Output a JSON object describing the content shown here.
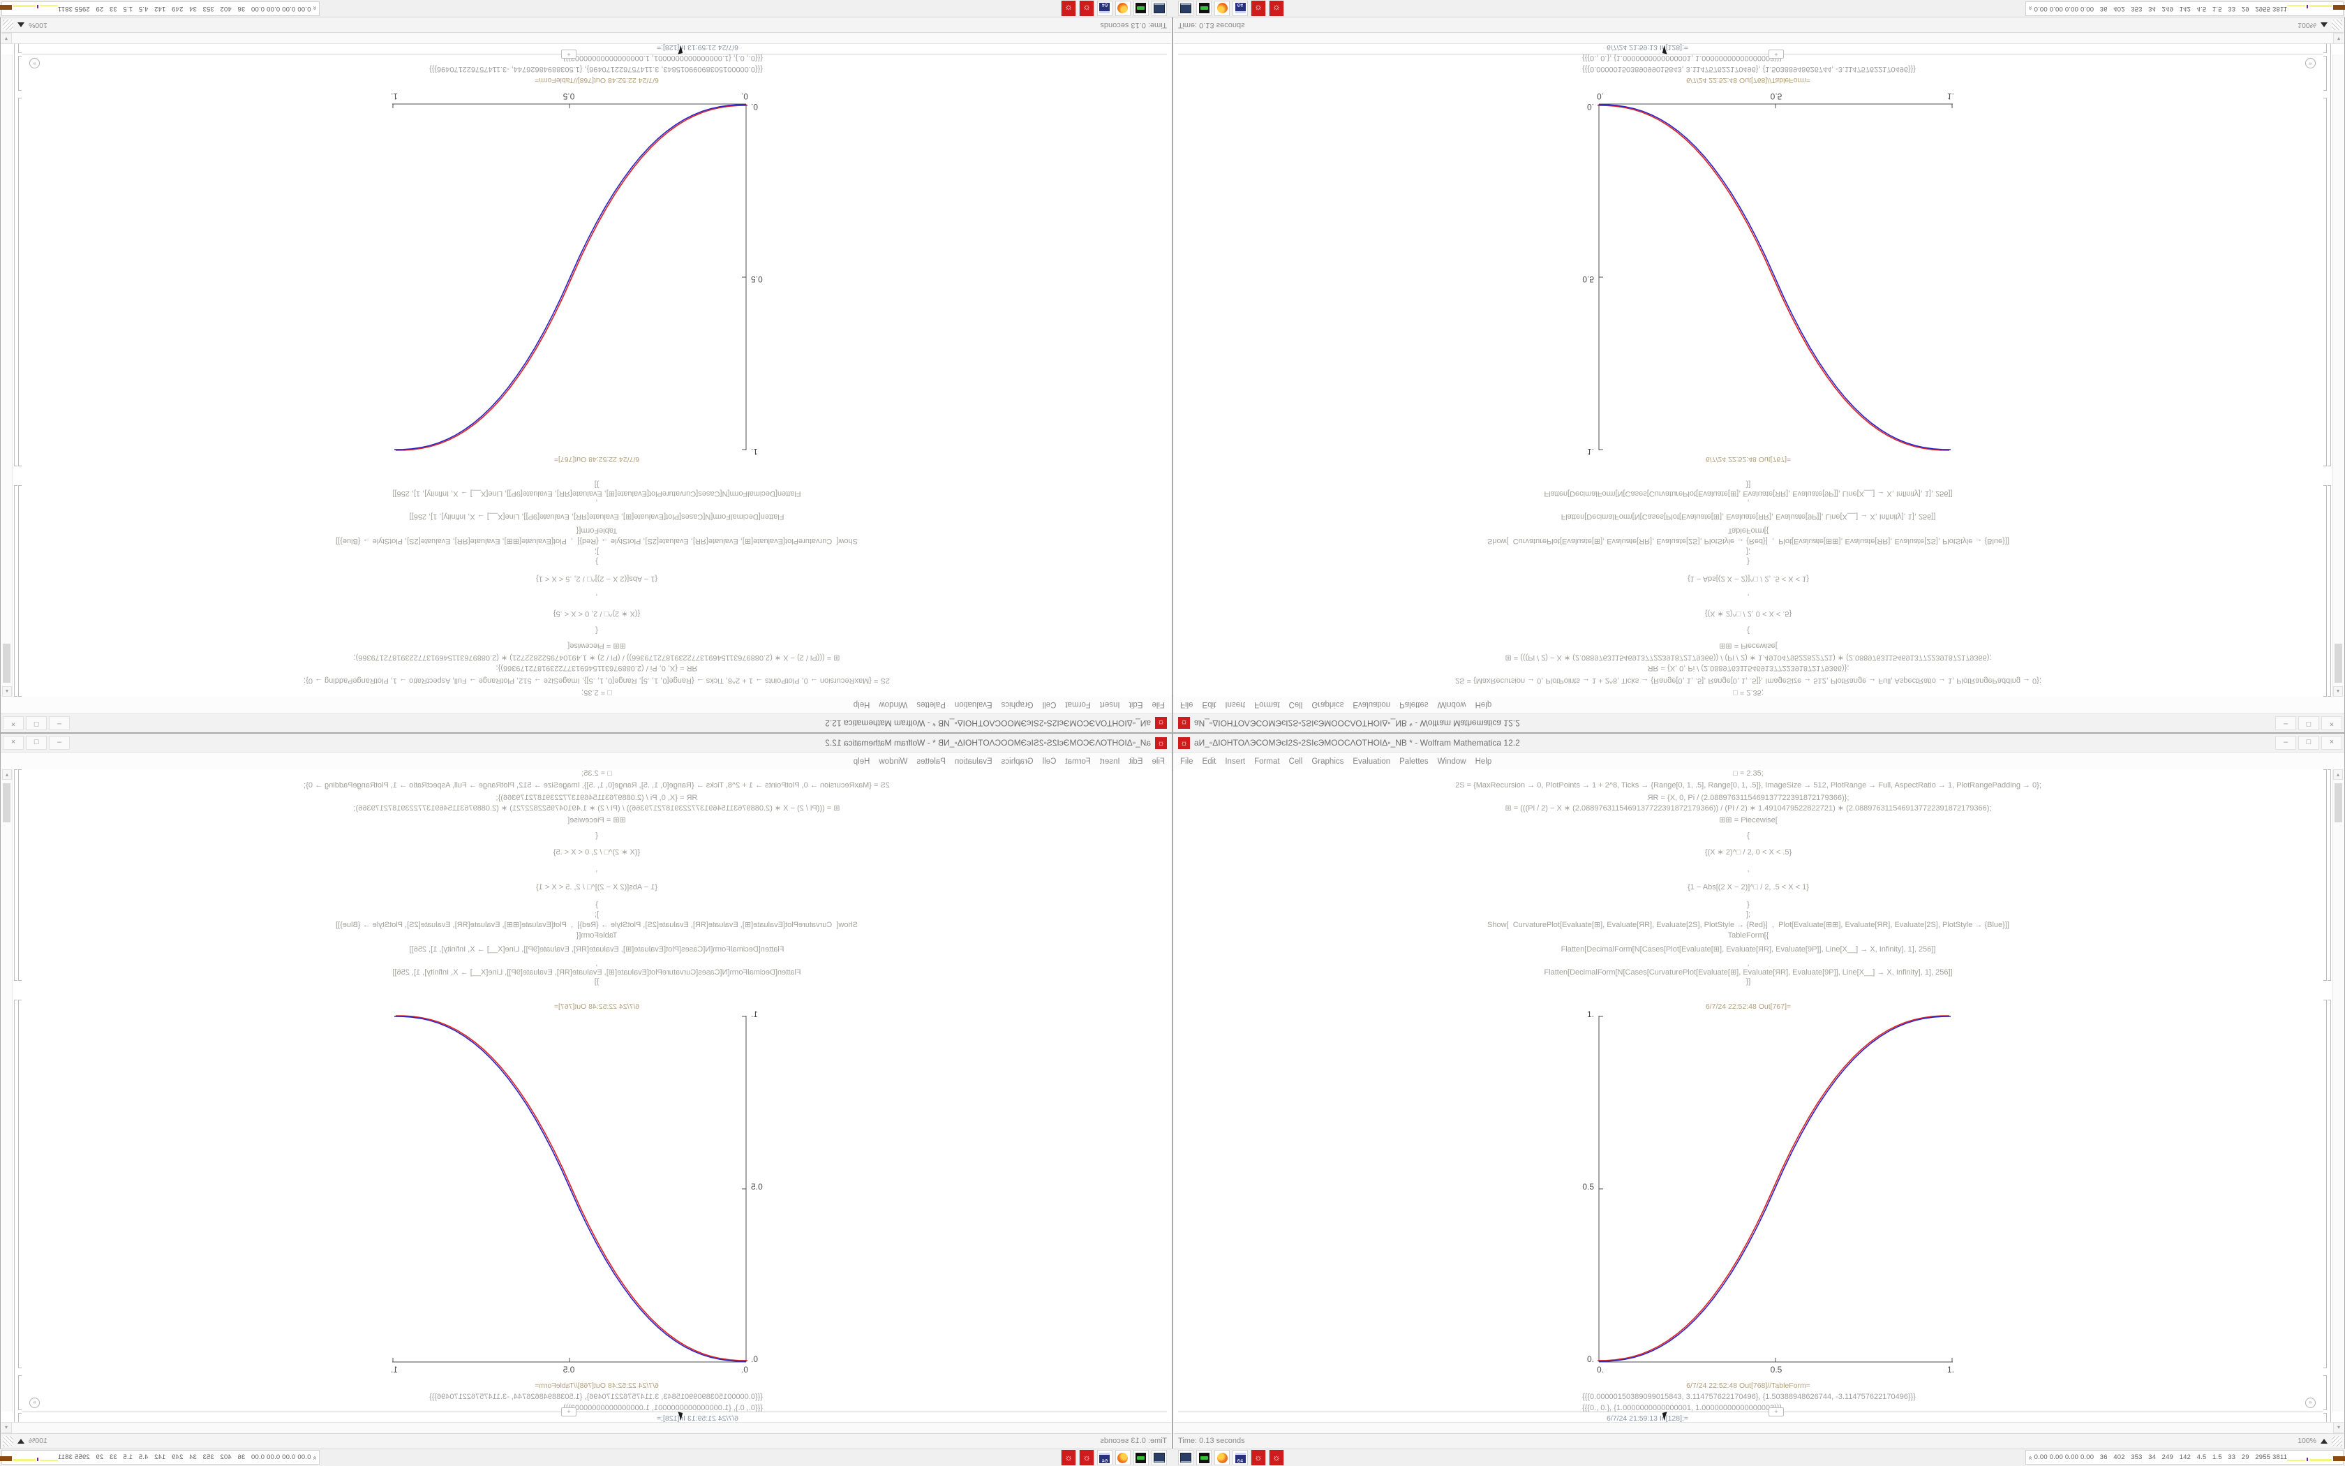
{
  "window": {
    "title": "аИ_▫ΔΙΟΗΤΟΛЭСΟΜЭєΙ2S▫2SΙєЭΜΟΟСΛΟΤΗΟΙΔ▫_NB * - Wolfram Mathematica 12.2",
    "menu": [
      "File",
      "Edit",
      "Insert",
      "Format",
      "Cell",
      "Graphics",
      "Evaluation",
      "Palettes",
      "Window",
      "Help"
    ],
    "controls": {
      "minimize": "–",
      "maximize": "□",
      "close": "×"
    }
  },
  "notebook": {
    "input_lines": [
      "□ = 2.35;",
      "2S = {MaxRecursion → 0, PlotPoints → 1 + 2^8, Ticks → {Range[0, 1, .5], Range[0, 1, .5]}, ImageSize → 512, PlotRange → Full, AspectRatio → 1, PlotRangePadding → 0};",
      "ЯR = {X, 0, Pi / (2.0889763115469137722391872179366)};",
      "⊞ = (((Pi / 2) − X ∗ (2.0889763115469137722391872179366)) / (Pi / 2) ∗ 1.4910479522822721) ∗ (2.0889763115469137722391872179366);",
      "⊞⊞ = Piecewise[",
      "{",
      "{(X ∗ 2)^□ / 2, 0 < X < .5}",
      ",",
      "{1 − Abs[(2 X − 2)]^□ / 2, .5 < X < 1}",
      "}",
      "];",
      "Show[  CurvaturePlot[Evaluate[⊞], Evaluate[ЯR], Evaluate[2S], PlotStyle → {Red}]  ,  Plot[Evaluate[⊞⊞], Evaluate[ЯR], Evaluate[2S], PlotStyle → {Blue}]]",
      "TableForm[{",
      "Flatten[DecimalForm[N[Cases[Plot[Evaluate[⊞], Evaluate[ЯR], Evaluate[9P]], Line[X__] → X, Infinity], 1], 256]]",
      ",",
      "Flatten[DecimalForm[N[Cases[CurvaturePlot[Evaluate[⊞], Evaluate[ЯR], Evaluate[9P]], Line[X__] → X, Infinity], 1], 256]]",
      "}]"
    ],
    "out1_label": "6/7/24 22:52:48 Out[767]=",
    "out2_label": "6/7/24 22:52:48 Out[768]//TableForm=",
    "table_rows": [
      "{{{0.00000150389099015843, 3.114757622170496}, {1.50388948626744, -3.114757622170496}}}",
      "{{{0., 0.}, {1.0000000000000001, 1.00000000000000003}}}"
    ],
    "in_label": "6/7/24 21:59:13 In[128]:=",
    "insert_plus": "+"
  },
  "chart_data": {
    "type": "line",
    "title": "",
    "xlabel": "",
    "ylabel": "",
    "xlim": [
      0,
      1
    ],
    "ylim": [
      0,
      1
    ],
    "x_ticks": [
      "0.",
      "0.5",
      "1."
    ],
    "y_ticks": [
      "0.",
      "0.5",
      "1."
    ],
    "grid": false,
    "legend": "none",
    "x": [
      0,
      0.025,
      0.05,
      0.075,
      0.1,
      0.125,
      0.15,
      0.175,
      0.2,
      0.225,
      0.25,
      0.275,
      0.3,
      0.325,
      0.35,
      0.375,
      0.4,
      0.425,
      0.45,
      0.475,
      0.5,
      0.525,
      0.55,
      0.575,
      0.6,
      0.625,
      0.65,
      0.675,
      0.7,
      0.725,
      0.75,
      0.775,
      0.8,
      0.825,
      0.85,
      0.875,
      0.9,
      0.925,
      0.95,
      0.975,
      1
    ],
    "series": [
      {
        "name": "CurvaturePlot (Red)",
        "color": "#dd2222",
        "values": [
          0,
          0.0004,
          0.0022,
          0.0058,
          0.0114,
          0.0192,
          0.0296,
          0.0424,
          0.058,
          0.0766,
          0.098,
          0.1227,
          0.1505,
          0.1817,
          0.2163,
          0.2543,
          0.2959,
          0.3413,
          0.3902,
          0.4432,
          0.5,
          0.5568,
          0.6098,
          0.6587,
          0.7041,
          0.7457,
          0.7837,
          0.8183,
          0.8495,
          0.8773,
          0.902,
          0.9234,
          0.942,
          0.9576,
          0.9705,
          0.9808,
          0.9886,
          0.9942,
          0.9978,
          0.9996,
          1
        ]
      },
      {
        "name": "Plot (Blue)",
        "color": "#2a23c8",
        "values": [
          0,
          0.0004,
          0.0022,
          0.0058,
          0.0114,
          0.0192,
          0.0296,
          0.0424,
          0.058,
          0.0766,
          0.098,
          0.1227,
          0.1505,
          0.1817,
          0.2163,
          0.2543,
          0.2959,
          0.3413,
          0.3902,
          0.4432,
          0.5,
          0.5568,
          0.6098,
          0.6587,
          0.7041,
          0.7457,
          0.7837,
          0.8183,
          0.8495,
          0.8773,
          0.902,
          0.9234,
          0.942,
          0.9576,
          0.9705,
          0.9808,
          0.9886,
          0.9942,
          0.9978,
          0.9996,
          1
        ]
      }
    ]
  },
  "statusbar": {
    "time": "Time: 0.13 seconds",
    "zoom": "100%"
  },
  "taskbar": {
    "icons": [
      "system-monitor",
      "disk-utility",
      "firefox",
      "floppy-64",
      "wolfram-mathematica",
      "wolfram-mathematica"
    ],
    "floppy_label": "64",
    "gear_glyph": "☼",
    "monitor_numbers": "0.00 0.00 0.00 0.00   36   402   353   34   249   142   4.5   1.5   33   29   2955 3811"
  },
  "colors": {
    "curve_red": "#dd2222",
    "curve_blue": "#2a23c8",
    "mathematica_tile": "#ce1b1b",
    "out_label": "#b19d76",
    "in_label": "#8795a8",
    "code_text": "#a0a09c",
    "widget_brown": "#8a4a10",
    "widget_blue": "#1f4e9e",
    "widget_green": "#55dd55",
    "widget_yellow": "#f6f67e",
    "widget_purple": "#7a1fa0"
  }
}
